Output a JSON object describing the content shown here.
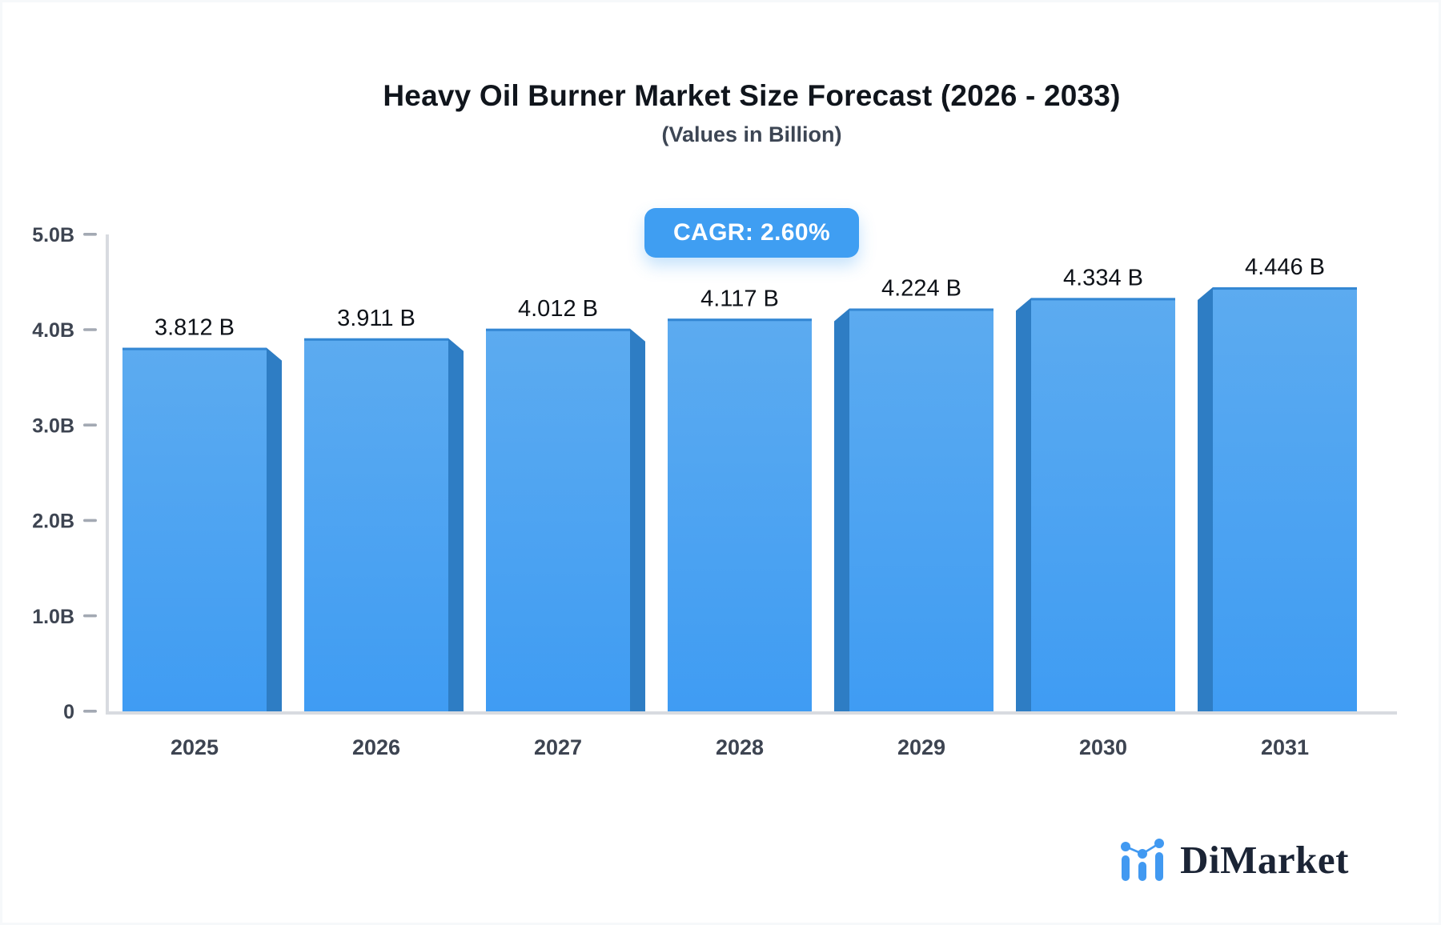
{
  "chart_data": {
    "type": "bar",
    "title": "Heavy Oil Burner Market Size Forecast (2026 - 2033)",
    "subtitle": "(Values in Billion)",
    "cagr_label": "CAGR: 2.60%",
    "categories": [
      "2025",
      "2026",
      "2027",
      "2028",
      "2029",
      "2030",
      "2031"
    ],
    "values": [
      3.812,
      3.911,
      4.012,
      4.117,
      4.224,
      4.334,
      4.446
    ],
    "value_labels": [
      "3.812 B",
      "3.911 B",
      "4.012 B",
      "4.117 B",
      "4.224 B",
      "4.334 B",
      "4.446 B"
    ],
    "xlabel": "",
    "ylabel": "",
    "ylim": [
      0,
      5
    ],
    "yticks": [
      {
        "label": "5.0B",
        "value": 5
      },
      {
        "label": "4.0B",
        "value": 4
      },
      {
        "label": "3.0B",
        "value": 3
      },
      {
        "label": "2.0B",
        "value": 2
      },
      {
        "label": "1.0B",
        "value": 1
      },
      {
        "label": "0",
        "value": 0
      }
    ],
    "grid": false,
    "legend": false,
    "bar_style": "3d-extruded-toward-center",
    "colors": {
      "bar_face_top": "#5cabf0",
      "bar_face_bottom": "#3f9cf3",
      "bar_side": "#2e7dc4",
      "bar_top_edge": "#3487d3",
      "badge_bg": "#3f9ef2",
      "axis_line": "#d8dbe0",
      "tick_dash": "#a3a9b3",
      "tick_text": "#3d4451",
      "value_text": "#0e1218",
      "title_text": "#10151c",
      "brand_blue": "#4199f1",
      "brand_text": "#1b2435"
    }
  },
  "footer": {
    "brand": "DiMarket",
    "logo_icon": "bar-chart-trend-icon"
  }
}
